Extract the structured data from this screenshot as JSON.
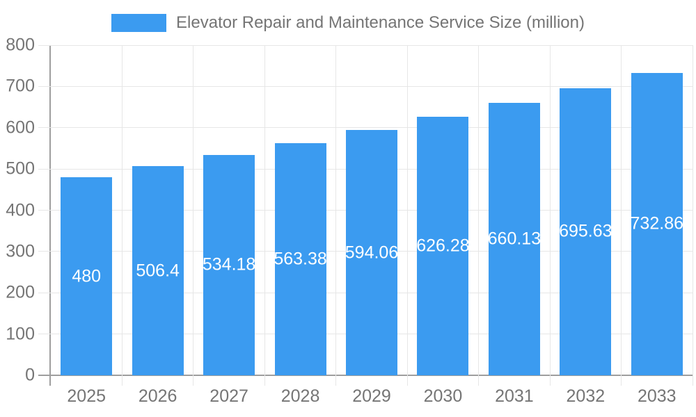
{
  "legend": {
    "label": "Elevator Repair and Maintenance Service Size (million)"
  },
  "chart_data": {
    "type": "bar",
    "title": "Elevator Repair and Maintenance Service Size (million)",
    "categories": [
      "2025",
      "2026",
      "2027",
      "2028",
      "2029",
      "2030",
      "2031",
      "2032",
      "2033"
    ],
    "values": [
      480,
      506.4,
      534.18,
      563.38,
      594.06,
      626.28,
      660.13,
      695.63,
      732.86
    ],
    "value_labels": [
      "480",
      "506.4",
      "534.18",
      "563.38",
      "594.06",
      "626.28",
      "660.13",
      "695.63",
      "732.86"
    ],
    "xlabel": "",
    "ylabel": "",
    "ylim": [
      0,
      800
    ],
    "y_ticks": [
      0,
      100,
      200,
      300,
      400,
      500,
      600,
      700,
      800
    ],
    "grid": true,
    "legend_position": "top"
  },
  "colors": {
    "bar": "#3B9BF0",
    "axis": "#9E9E9E",
    "grid": "#E6E6E6",
    "text": "#757575",
    "value_label": "#FFFFFF"
  }
}
